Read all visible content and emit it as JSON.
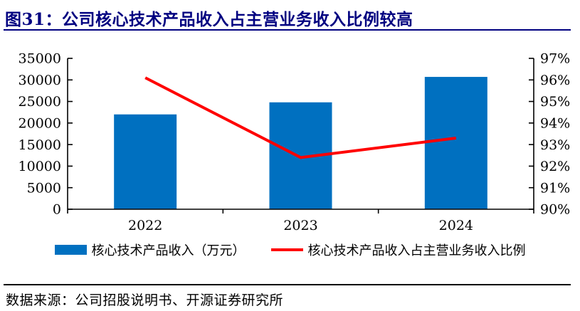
{
  "figure": {
    "title": "图31：公司核心技术产品收入占主营业务收入比例较高",
    "title_color": "#000080",
    "source_label": "数据来源：公司招股说明书、开源证券研究所"
  },
  "chart_data": {
    "type": "bar+line combo",
    "categories": [
      "2022",
      "2023",
      "2024"
    ],
    "series": [
      {
        "name": "核心技术产品收入（万元）",
        "type": "bar",
        "axis": "left",
        "color": "#0070C0",
        "values": [
          22000,
          24800,
          30700
        ]
      },
      {
        "name": "核心技术产品收入占主营业务收入比例",
        "type": "line",
        "axis": "right",
        "color": "#FF0000",
        "values": [
          96.1,
          92.4,
          93.3
        ]
      }
    ],
    "left_axis": {
      "min": 0,
      "max": 35000,
      "step": 5000,
      "tick_labels": [
        "0",
        "5000",
        "10000",
        "15000",
        "20000",
        "25000",
        "30000",
        "35000"
      ]
    },
    "right_axis": {
      "min": 90,
      "max": 97,
      "step": 1,
      "suffix": "%",
      "tick_labels": [
        "90%",
        "91%",
        "92%",
        "93%",
        "94%",
        "95%",
        "96%",
        "97%"
      ]
    },
    "grid": false,
    "legend_position": "bottom",
    "axis_color": "#000000",
    "tick_label_color": "#000000"
  }
}
